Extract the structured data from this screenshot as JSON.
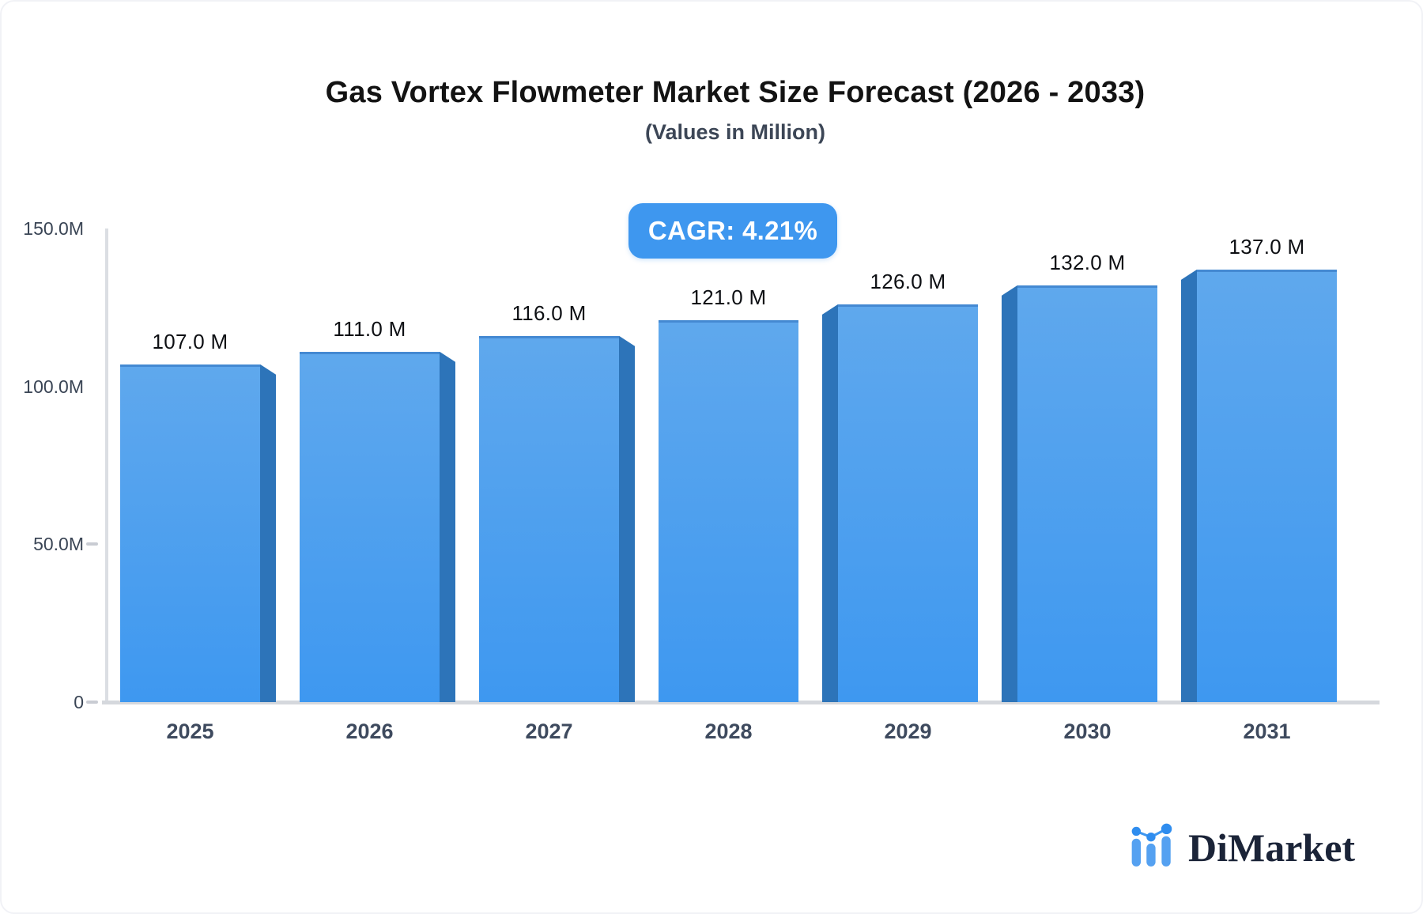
{
  "header": {
    "title": "Gas Vortex Flowmeter Market Size Forecast (2026 - 2033)",
    "subtitle": "(Values in Million)",
    "cagr_label": "CAGR: 4.21%"
  },
  "chart_data": {
    "type": "bar",
    "title": "Gas Vortex Flowmeter Market Size Forecast (2026 - 2033)",
    "subtitle": "(Values in Million)",
    "categories": [
      "2025",
      "2026",
      "2027",
      "2028",
      "2029",
      "2030",
      "2031"
    ],
    "values": [
      107.0,
      111.0,
      116.0,
      121.0,
      126.0,
      132.0,
      137.0
    ],
    "value_labels": [
      "107.0 M",
      "111.0 M",
      "116.0 M",
      "121.0 M",
      "126.0 M",
      "132.0 M",
      "137.0 M"
    ],
    "unit": "Million",
    "cagr": "4.21%",
    "ylim": [
      0,
      150
    ],
    "yticks": [
      {
        "label": "150.0M",
        "value": 150,
        "dash": false
      },
      {
        "label": "100.0M",
        "value": 100,
        "dash": false
      },
      {
        "label": "50.0M",
        "value": 50,
        "dash": true
      },
      {
        "label": "0",
        "value": 0,
        "dash": true
      }
    ],
    "legend": "none",
    "grid": "off",
    "colors": {
      "bar_face_top": "#5fa8ed",
      "bar_face_bottom": "#3e98f0",
      "bar_side": "#2d74b9",
      "axis": "#d9dce1",
      "badge": "#3e97ef",
      "title_text": "#131313",
      "axis_text": "#3e4a5e"
    }
  },
  "branding": {
    "logo_text": "DiMarket",
    "logo_icon": "bar-chart-logo-icon",
    "logo_text_color": "#1b2438",
    "logo_icon_color": "#3e97f0"
  }
}
